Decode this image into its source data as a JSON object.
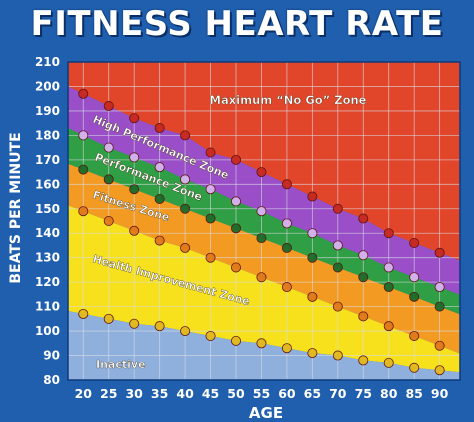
{
  "chart_data": {
    "type": "area",
    "title": "FITNESS HEART RATE",
    "xlabel": "AGE",
    "ylabel": "BEATS PER MINUTE",
    "x": [
      20,
      25,
      30,
      35,
      40,
      45,
      50,
      55,
      60,
      65,
      70,
      75,
      80,
      85,
      90
    ],
    "x_ticks": [
      "20",
      "25",
      "30",
      "35",
      "40",
      "45",
      "50",
      "55",
      "60",
      "65",
      "70",
      "75",
      "80",
      "85",
      "90"
    ],
    "y_ticks": [
      "80",
      "90",
      "100",
      "110",
      "120",
      "130",
      "140",
      "150",
      "160",
      "170",
      "180",
      "190",
      "200",
      "210"
    ],
    "xlim": [
      17,
      94
    ],
    "ylim": [
      80,
      210
    ],
    "grid": true,
    "boundaries": [
      {
        "name": "max",
        "values": [
          197,
          192,
          187,
          183,
          180,
          173,
          170,
          165,
          160,
          155,
          150,
          146,
          140,
          136,
          132
        ]
      },
      {
        "name": "high_performance",
        "values": [
          180,
          175,
          171,
          167,
          162,
          158,
          153,
          149,
          144,
          140,
          135,
          131,
          126,
          122,
          118
        ]
      },
      {
        "name": "performance",
        "values": [
          166,
          162,
          158,
          154,
          150,
          146,
          142,
          138,
          134,
          130,
          126,
          122,
          118,
          114,
          110
        ]
      },
      {
        "name": "fitness",
        "values": [
          149,
          145,
          141,
          137,
          134,
          130,
          126,
          122,
          118,
          114,
          110,
          106,
          102,
          98,
          94
        ]
      },
      {
        "name": "inactive",
        "values": [
          107,
          105,
          103,
          102,
          100,
          98,
          96,
          95,
          93,
          91,
          90,
          88,
          87,
          85,
          84
        ]
      }
    ],
    "zones": [
      {
        "label": "Maximum “No Go” Zone",
        "color": "#e2462a",
        "lower": "max",
        "upper": "top"
      },
      {
        "label": "High Performance Zone",
        "color": "#9a4fc8",
        "lower": "high_performance",
        "upper": "max"
      },
      {
        "label": "Performance Zone",
        "color": "#2f9e44",
        "lower": "performance",
        "upper": "high_performance"
      },
      {
        "label": "Fitness Zone",
        "color": "#f39a22",
        "lower": "fitness",
        "upper": "performance"
      },
      {
        "label": "Health Improvement Zone",
        "color": "#f6e11c",
        "lower": "inactive",
        "upper": "fitness"
      },
      {
        "label": "Inactive",
        "color": "#8fb0dc",
        "lower": "bottom",
        "upper": "inactive"
      }
    ],
    "colors": {
      "background": "#1f5fae",
      "grid": "#d8dde6",
      "axis_text": "#ffffff",
      "marker_max": "#c8281e",
      "marker_high_performance": "#d7b3ee",
      "marker_performance": "#1d6b2a",
      "marker_fitness": "#e0781a",
      "marker_inactive": "#e3b81c"
    }
  }
}
